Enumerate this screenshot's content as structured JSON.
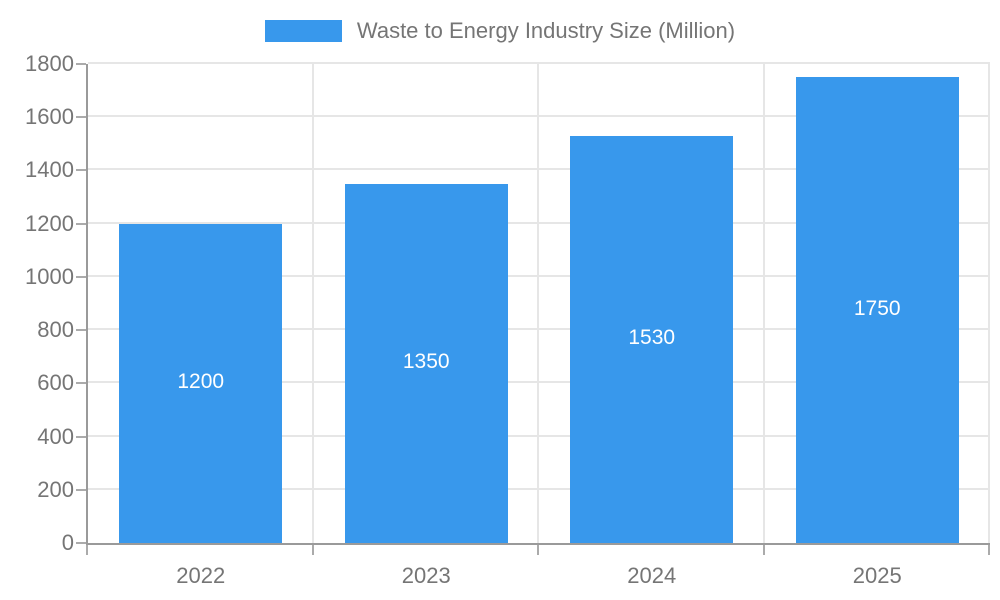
{
  "legend": {
    "label": "Waste to Energy Industry Size (Million)",
    "swatch_color": "#3898ec"
  },
  "chart_data": {
    "type": "bar",
    "categories": [
      "2022",
      "2023",
      "2024",
      "2025"
    ],
    "values": [
      1200,
      1350,
      1530,
      1750
    ],
    "title": "Waste to Energy Industry Size (Million)",
    "xlabel": "",
    "ylabel": "",
    "ylim": [
      0,
      1800
    ],
    "ytick_step": 200,
    "ytick_labels": [
      "0",
      "200",
      "400",
      "600",
      "800",
      "1000",
      "1200",
      "1400",
      "1600",
      "1800"
    ],
    "grid": true,
    "legend_position": "top",
    "data_labels_inside_bars": true,
    "colors": {
      "bar": "#3898ec",
      "bar_label_text": "#ffffff",
      "axis_text": "#757575",
      "gridline": "#e6e6e6",
      "axis_line": "#9a9a9a"
    }
  }
}
